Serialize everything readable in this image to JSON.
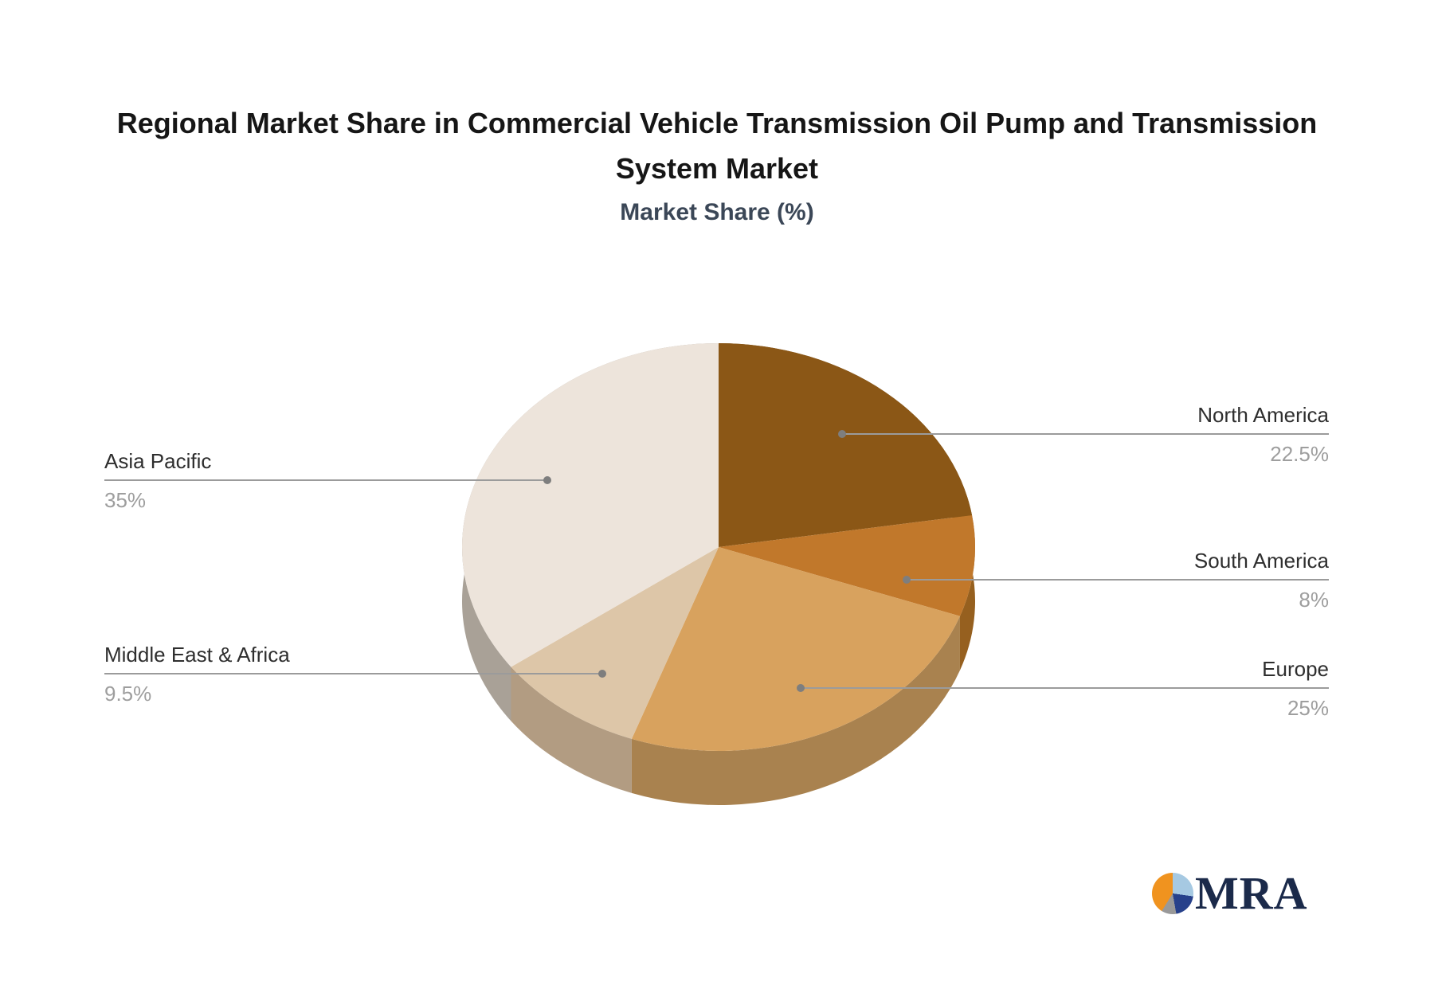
{
  "title": {
    "line1": "Regional Market Share in Commercial Vehicle Transmission Oil Pump and Transmission",
    "line2": "System Market"
  },
  "subtitle": "Market Share (%)",
  "chart_data": {
    "type": "pie",
    "title": "Regional Market Share in Commercial Vehicle Transmission Oil Pump and Transmission System Market",
    "subtitle": "Market Share (%)",
    "categories": [
      "North America",
      "South America",
      "Europe",
      "Middle East & Africa",
      "Asia Pacific"
    ],
    "values": [
      22.5,
      8,
      25,
      9.5,
      35
    ],
    "unit": "%",
    "style": "3d-pie",
    "start_angle_deg": 0,
    "direction": "clockwise",
    "colors": [
      "#8b5716",
      "#c1782b",
      "#d8a25e",
      "#ddc6a8",
      "#ede4db"
    ],
    "side_colors": [
      "#6e450f",
      "#96601f",
      "#a9824f",
      "#b29c82",
      "#a9a197"
    ],
    "leader_line_color": "#9b9b9b",
    "label_color": "#2e2e2e",
    "value_color": "#9e9e9e",
    "legend_position": "none",
    "labels": [
      {
        "name": "North America",
        "value": "22.5%"
      },
      {
        "name": "South America",
        "value": "8%"
      },
      {
        "name": "Europe",
        "value": "25%"
      },
      {
        "name": "Middle East & Africa",
        "value": "9.5%"
      },
      {
        "name": "Asia Pacific",
        "value": "35%"
      }
    ]
  },
  "logo": {
    "text": "MRA"
  }
}
